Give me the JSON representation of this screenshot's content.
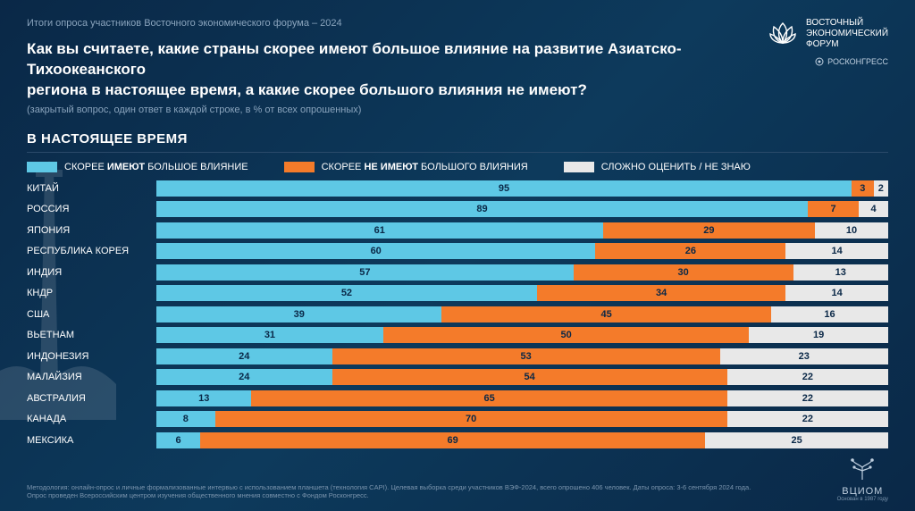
{
  "colors": {
    "have": "#5ec8e5",
    "not": "#f47b2a",
    "dk": "#e8e8e8",
    "bg": "#0d3156"
  },
  "header": {
    "subtitle": "Итоги опроса участников Восточного экономического форума – 2024",
    "title_l1": "Как вы считаете, какие страны скорее имеют большое влияние на развитие Азиатско-Тихоокеанского",
    "title_l2": "региона в настоящее время, а какие скорее большого влияния не имеют?",
    "note": "(закрытый вопрос, один ответ в каждой строке, в % от всех опрошенных)",
    "forum_l1": "ВОСТОЧНЫЙ",
    "forum_l2": "ЭКОНОМИЧЕСКИЙ",
    "forum_l3": "ФОРУМ",
    "sponsor": "РОСКОНГРЕСС"
  },
  "section": "В НАСТОЯЩЕЕ ВРЕМЯ",
  "legend": {
    "have_pre": "СКОРЕЕ ",
    "have_b": "ИМЕЮТ",
    "have_post": " БОЛЬШОЕ ВЛИЯНИЕ",
    "not_pre": "СКОРЕЕ ",
    "not_b": "НЕ ИМЕЮТ",
    "not_post": " БОЛЬШОГО ВЛИЯНИЯ",
    "dk": "СЛОЖНО ОЦЕНИТЬ / НЕ ЗНАЮ"
  },
  "chart": {
    "rows": [
      {
        "label": "КИТАЙ",
        "have": 95,
        "not": 3,
        "dk": 2
      },
      {
        "label": "РОССИЯ",
        "have": 89,
        "not": 7,
        "dk": 4
      },
      {
        "label": "ЯПОНИЯ",
        "have": 61,
        "not": 29,
        "dk": 10
      },
      {
        "label": "РЕСПУБЛИКА КОРЕЯ",
        "have": 60,
        "not": 26,
        "dk": 14
      },
      {
        "label": "ИНДИЯ",
        "have": 57,
        "not": 30,
        "dk": 13
      },
      {
        "label": "КНДР",
        "have": 52,
        "not": 34,
        "dk": 14
      },
      {
        "label": "США",
        "have": 39,
        "not": 45,
        "dk": 16
      },
      {
        "label": "ВЬЕТНАМ",
        "have": 31,
        "not": 50,
        "dk": 19
      },
      {
        "label": "ИНДОНЕЗИЯ",
        "have": 24,
        "not": 53,
        "dk": 23
      },
      {
        "label": "МАЛАЙЗИЯ",
        "have": 24,
        "not": 54,
        "dk": 22
      },
      {
        "label": "АВСТРАЛИЯ",
        "have": 13,
        "not": 65,
        "dk": 22
      },
      {
        "label": "КАНАДА",
        "have": 8,
        "not": 70,
        "dk": 22
      },
      {
        "label": "МЕКСИКА",
        "have": 6,
        "not": 69,
        "dk": 25
      }
    ]
  },
  "footnote": {
    "l1": "Методология: онлайн-опрос и личные формализованные интервью с использованием планшета (технология CAPI). Целевая выборка среди участников ВЭФ-2024, всего опрошено 406 человек. Даты опроса: 3-6 сентября 2024 года.",
    "l2": "Опрос проведен Всероссийским центром изучения общественного мнения совместно с Фондом Росконгресс."
  },
  "bottom_logo": {
    "text": "ВЦИОМ",
    "sub": "Основан в 1987 году"
  }
}
